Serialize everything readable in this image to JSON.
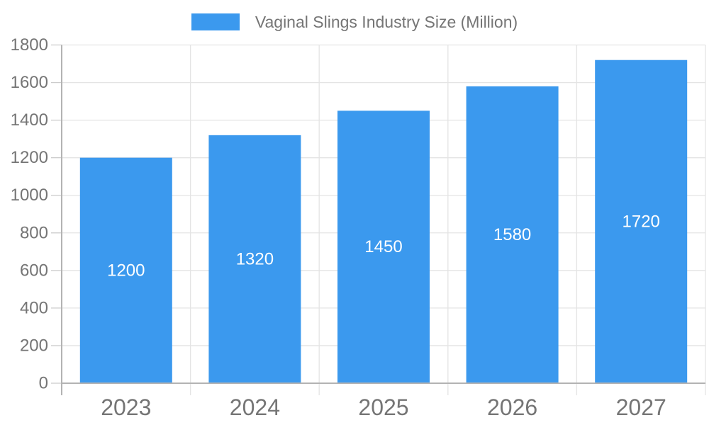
{
  "chart_data": {
    "type": "bar",
    "title": "Vaginal Slings Industry Size (Million)",
    "legend_label": "Vaginal Slings Industry Size (Million)",
    "legend_position": "top",
    "categories": [
      "2023",
      "2024",
      "2025",
      "2026",
      "2027"
    ],
    "values": [
      1200,
      1320,
      1450,
      1580,
      1720
    ],
    "series": [
      {
        "name": "Vaginal Slings Industry Size (Million)",
        "values": [
          1200,
          1320,
          1450,
          1580,
          1720
        ]
      }
    ],
    "xlabel": "",
    "ylabel": "",
    "ylim": [
      0,
      1800
    ],
    "yticks": [
      0,
      200,
      400,
      600,
      800,
      1000,
      1200,
      1400,
      1600,
      1800
    ],
    "grid": true,
    "value_labels_inside_bars": true,
    "bar_color": "#3b99ee",
    "value_label_color": "#ffffff",
    "text_color": "#757575",
    "axis_color": "#b3b3b3",
    "tick_color": "#cccccc",
    "grid_color": "#e4e4e4"
  }
}
